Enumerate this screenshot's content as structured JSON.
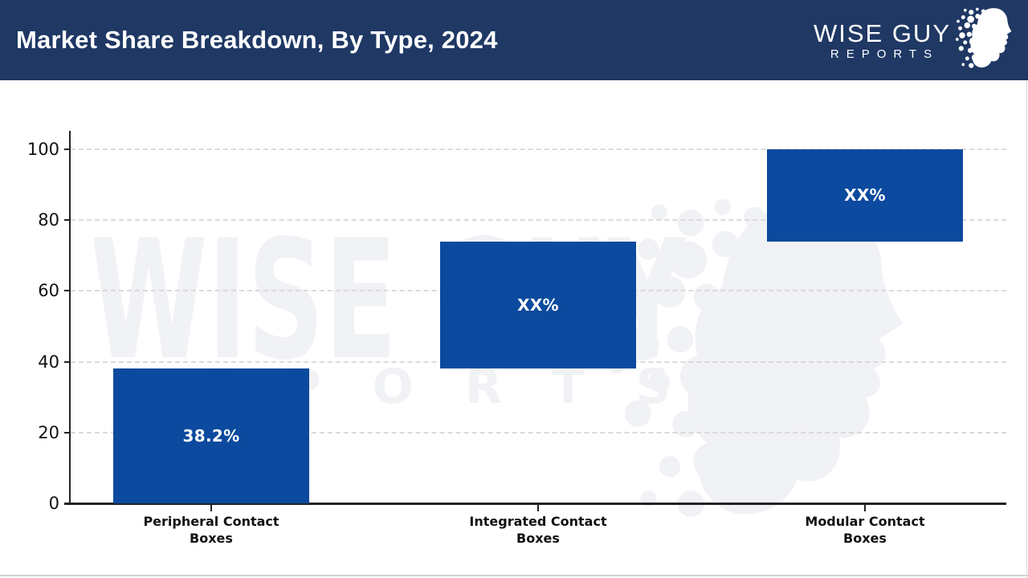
{
  "header": {
    "title": "Market Share Breakdown, By Type, 2024",
    "logo": {
      "name": "WISE GUY",
      "tagline": "REPORTS"
    }
  },
  "watermark": {
    "line1": "WISE GUY",
    "line2": "REPORTS"
  },
  "chart_data": {
    "type": "bar",
    "subtype": "floating-waterfall",
    "title": "Market Share Breakdown, By Type, 2024",
    "categories": [
      "Peripheral Contact Boxes",
      "Integrated Contact Boxes",
      "Modular Contact Boxes"
    ],
    "bars": [
      {
        "category": "Peripheral Contact Boxes",
        "start": 0,
        "end": 38.2,
        "label": "38.2%"
      },
      {
        "category": "Integrated Contact Boxes",
        "start": 38.2,
        "end": 74,
        "label": "XX%"
      },
      {
        "category": "Modular Contact Boxes",
        "start": 74,
        "end": 100,
        "label": "XX%"
      }
    ],
    "yticks": [
      0,
      20,
      40,
      60,
      80,
      100
    ],
    "ylim": [
      0,
      105
    ],
    "xlabel": "",
    "ylabel": "",
    "grid": "horizontal-dashed",
    "legend": "none",
    "bar_color": "#0b4a9e",
    "bar_label_color": "#ffffff"
  },
  "colors": {
    "header_bg": "#1f3864",
    "bar": "#0b4a9e",
    "grid": "#dadada",
    "axis": "#222222",
    "text": "#111111",
    "watermark": "#f1f2f5"
  }
}
